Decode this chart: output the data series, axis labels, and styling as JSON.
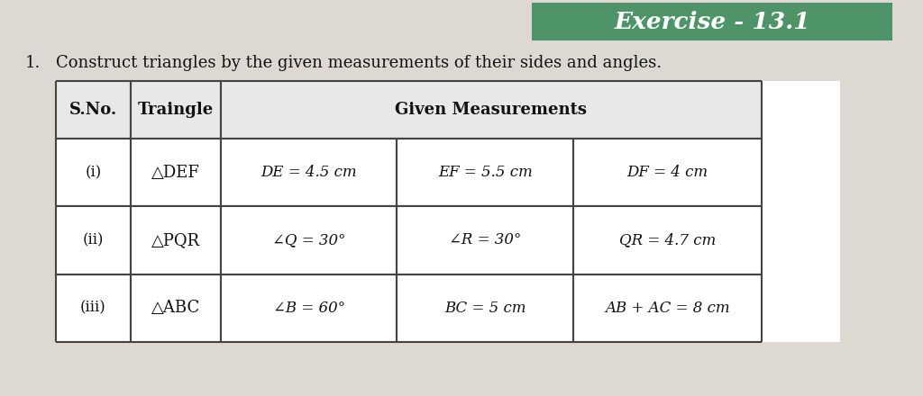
{
  "title": "Exercise - 13.1",
  "question_number": "1.",
  "question_text": "Construct triangles by the given measurements of their sides and angles.",
  "rows": [
    {
      "sno": "(i)",
      "triangle": "△DEF",
      "m1": "DE = 4.5 cm",
      "m2": "EF = 5.5 cm",
      "m3": "DF = 4 cm"
    },
    {
      "sno": "(ii)",
      "triangle": "△PQR",
      "m1": "∠Q = 30°",
      "m2": "∠R = 30°",
      "m3": "QR = 4.7 cm"
    },
    {
      "sno": "(iii)",
      "triangle": "△ABC",
      "m1": "∠B = 60°",
      "m2": "BC = 5 cm",
      "m3": "AB + AC = 8 cm"
    }
  ],
  "bg_color": "#ddd9d2",
  "table_bg": "#ffffff",
  "border_color": "#444444",
  "title_bg": "#4e9468",
  "title_text_color": "#ffffff",
  "header_text_color": "#111111",
  "cell_text_color": "#111111"
}
